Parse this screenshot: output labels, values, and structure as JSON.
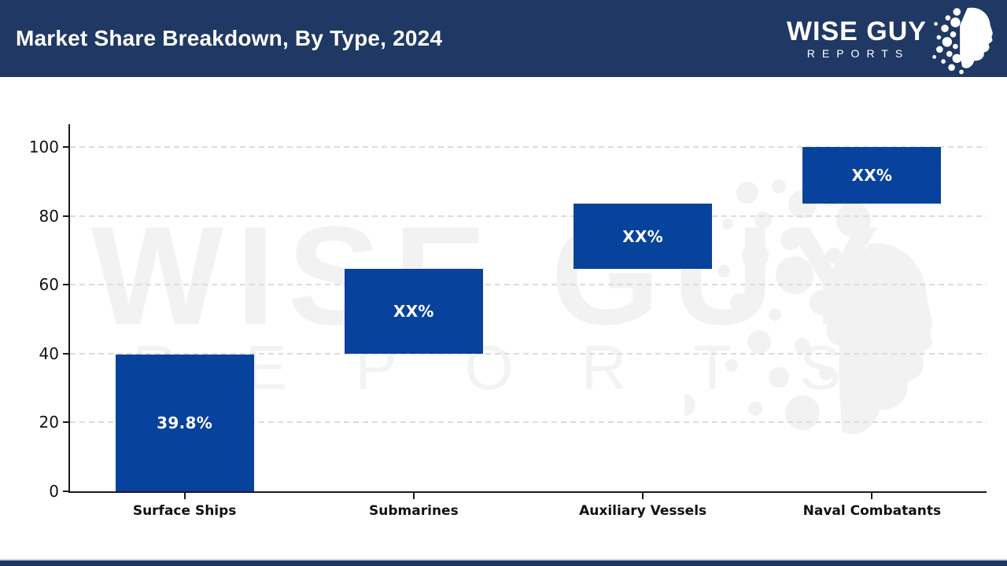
{
  "header": {
    "title": "Market Share Breakdown, By Type, 2024",
    "logo": {
      "line1": "WISE GUY",
      "line2": "REPORTS"
    },
    "bg_color": "#1f3864"
  },
  "watermark": {
    "line1": "WISE GUY",
    "line2": "REPORTS"
  },
  "chart_data": {
    "type": "bar",
    "subtype": "waterfall-floating-bars",
    "title": "Market Share Breakdown, By Type, 2024",
    "categories": [
      "Surface Ships",
      "Submarines",
      "Auxiliary Vessels",
      "Naval Combatants"
    ],
    "segments": [
      {
        "category": "Surface Ships",
        "start": 0,
        "end": 39.8,
        "label": "39.8%"
      },
      {
        "category": "Submarines",
        "start": 40,
        "end": 64.5,
        "label": "XX%"
      },
      {
        "category": "Auxiliary Vessels",
        "start": 64.5,
        "end": 83.5,
        "label": "XX%"
      },
      {
        "category": "Naval Combatants",
        "start": 83.5,
        "end": 100,
        "label": "XX%"
      }
    ],
    "xlabel": "",
    "ylabel": "",
    "ylim": [
      0,
      100
    ],
    "yticks": [
      0,
      20,
      40,
      60,
      80,
      100
    ],
    "bar_color": "#07429c",
    "bar_label_color": "#ffffff",
    "grid": "horizontal dashed",
    "grid_color": "#dcdcdc",
    "legend": "none"
  }
}
